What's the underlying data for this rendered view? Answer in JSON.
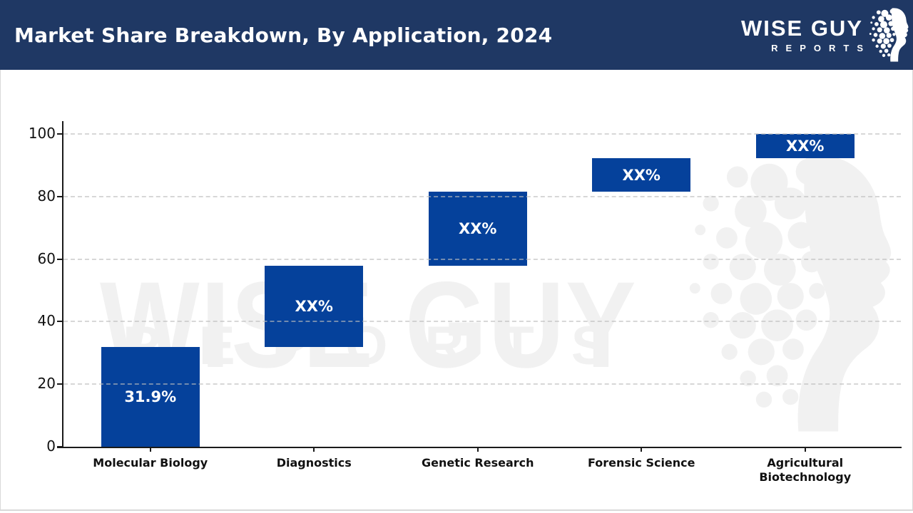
{
  "header": {
    "title": "Market Share Breakdown, By Application, 2024",
    "bg_color": "#1f3864",
    "logo": {
      "line1": "WISE GUY",
      "line2": "REPORTS"
    }
  },
  "watermark": {
    "line1": "WISE GUY",
    "line2": "REPORTS"
  },
  "chart_data": {
    "type": "bar",
    "subtype": "waterfall",
    "title": "Market Share Breakdown, By Application, 2024",
    "categories": [
      "Molecular Biology",
      "Diagnostics",
      "Genetic Research",
      "Forensic Science",
      "Agricultural Biotechnology"
    ],
    "tick_labels": [
      "Molecular Biology",
      "Diagnostics",
      "Genetic Research",
      "Forensic Science",
      "Agricultural\nBiotechnology"
    ],
    "segments": [
      {
        "start": 0,
        "end": 31.9
      },
      {
        "start": 31.9,
        "end": 57.8
      },
      {
        "start": 57.8,
        "end": 81.5
      },
      {
        "start": 81.5,
        "end": 92.3
      },
      {
        "start": 92.3,
        "end": 100
      }
    ],
    "bar_labels": [
      "31.9%",
      "XX%",
      "XX%",
      "XX%",
      "XX%"
    ],
    "y_ticks": [
      0,
      20,
      40,
      60,
      80,
      100
    ],
    "ylim": [
      0,
      105
    ],
    "xlabel": "",
    "ylabel": "",
    "legend": "none",
    "grid": "horizontal-dashed",
    "bar_color": "#05419b",
    "grid_color": "#bcbcbc",
    "axis_color": "#1a1a1a",
    "label_text_color": "#ffffff"
  }
}
